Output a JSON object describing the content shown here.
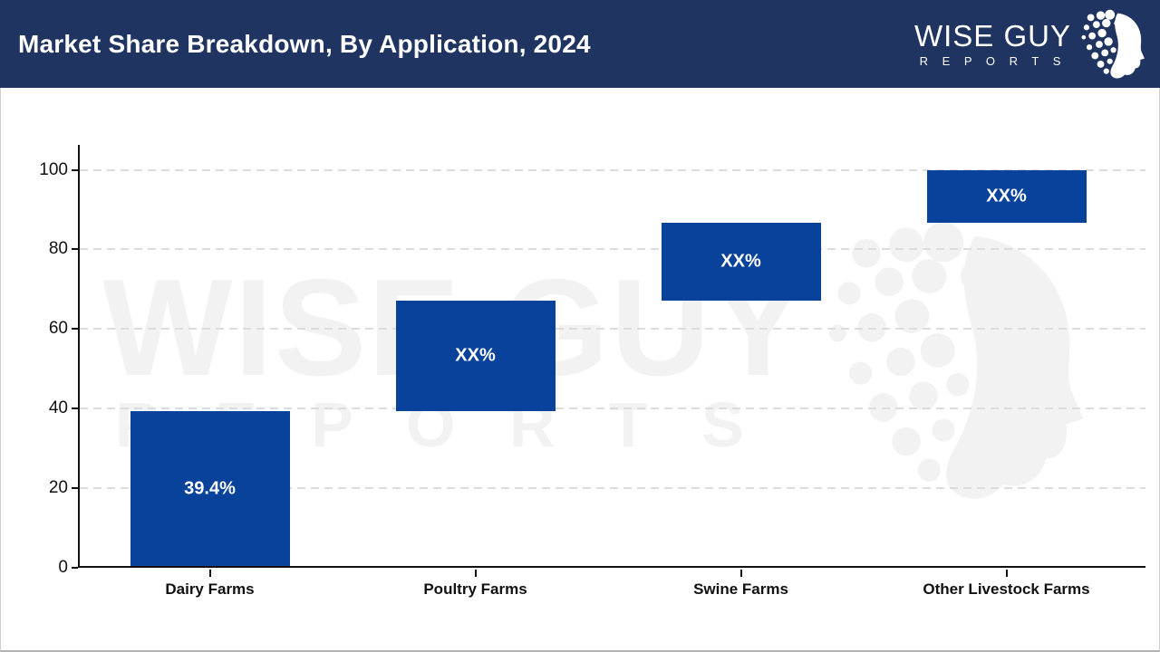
{
  "header": {
    "title": "Market Share Breakdown, By Application, 2024",
    "bg_color": "#1f3461",
    "logo": {
      "line1": "WISE GUY",
      "line2": "R E P O R T S"
    }
  },
  "watermark": {
    "line1": "WISE GUY",
    "line2": "R E P O R T S"
  },
  "chart_data": {
    "type": "bar",
    "subtype": "waterfall",
    "title": "Market Share Breakdown, By Application, 2024",
    "xlabel": "",
    "ylabel": "",
    "ylim": [
      0,
      100
    ],
    "y_ticks": [
      0,
      20,
      40,
      60,
      80,
      100
    ],
    "grid": "dashed horizontal",
    "legend": "none",
    "bar_color": "#08429b",
    "bar_label_color": "#ffffff",
    "categories": [
      "Dairy Farms",
      "Poultry Farms",
      "Swine Farms",
      "Other Livestock Farms"
    ],
    "segments": [
      {
        "category": "Dairy Farms",
        "start": 0,
        "end": 39.4,
        "label": "39.4%"
      },
      {
        "category": "Poultry Farms",
        "start": 39.4,
        "end": 67.1,
        "label": "XX%"
      },
      {
        "category": "Swine Farms",
        "start": 67.1,
        "end": 86.6,
        "label": "XX%"
      },
      {
        "category": "Other Livestock Farms",
        "start": 86.6,
        "end": 100,
        "label": "XX%"
      }
    ]
  }
}
